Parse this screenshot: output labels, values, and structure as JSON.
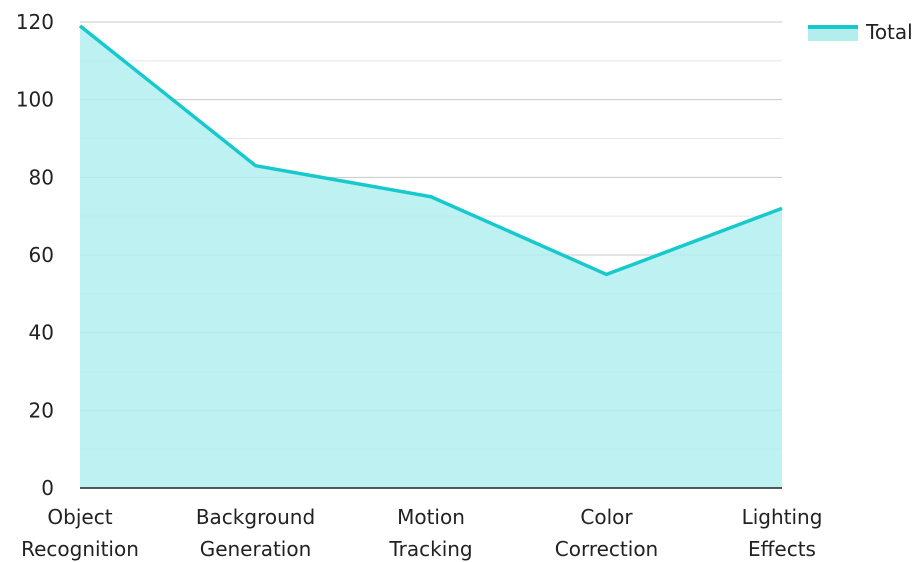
{
  "chart_data": {
    "type": "area",
    "categories": [
      [
        "Object",
        "Recognition"
      ],
      [
        "Background",
        "Generation"
      ],
      [
        "Motion",
        "Tracking"
      ],
      [
        "Color",
        "Correction"
      ],
      [
        "Lighting",
        "Effects"
      ]
    ],
    "series": [
      {
        "name": "Total",
        "values": [
          119,
          83,
          75,
          55,
          72
        ]
      }
    ],
    "ylim": [
      0,
      120
    ],
    "yticks": [
      0,
      20,
      40,
      60,
      80,
      100,
      120
    ],
    "grid": true,
    "legend_position": "top-right",
    "colors": {
      "line": "#17c9cc",
      "fill": "#b3eeee",
      "grid_major": "#c8c8c8",
      "grid_minor": "#e6e6e6",
      "axis": "#222222"
    }
  }
}
